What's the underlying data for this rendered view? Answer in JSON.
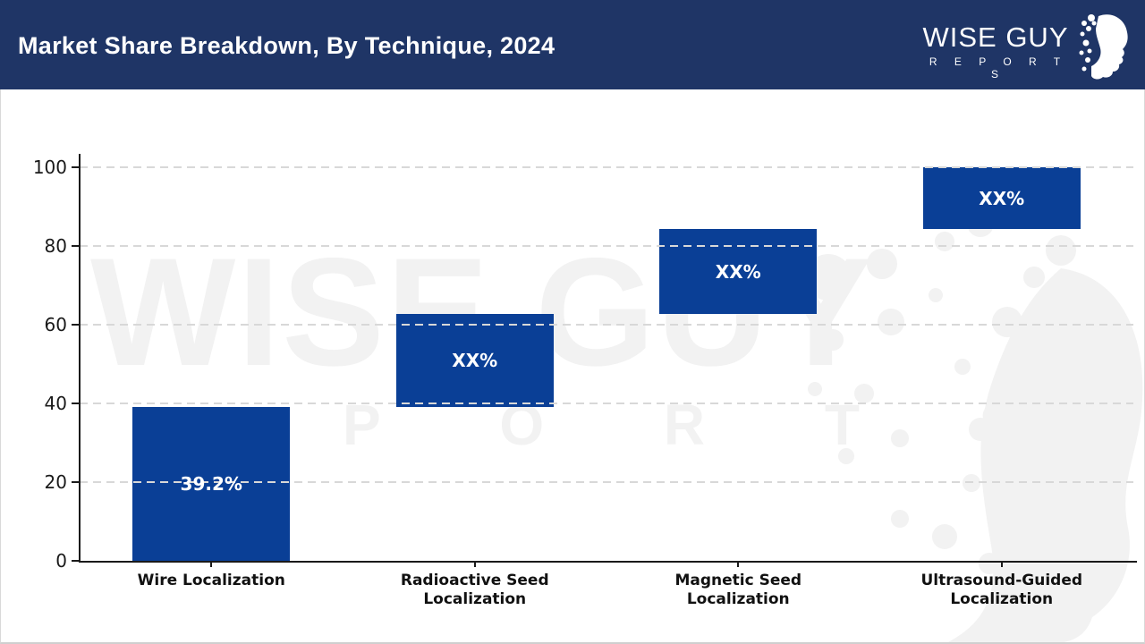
{
  "header": {
    "title": "Market Share Breakdown, By Technique, 2024",
    "logo": {
      "name": "WISE GUY",
      "sub": "R E P O R T S"
    }
  },
  "watermark": {
    "line1": "WISE GUY",
    "line2": "P O R T S"
  },
  "colors": {
    "header_bg": "#1f3566",
    "bar": "#0a3f96",
    "axis": "#1a1a1a",
    "grid": "#d9d9d9",
    "watermark": "#f2f2f2",
    "page_bg": "#ffffff"
  },
  "chart_data": {
    "type": "bar",
    "variant": "floating-waterfall",
    "title": "Market Share Breakdown, By Technique, 2024",
    "xlabel": "",
    "ylabel": "",
    "ylim": [
      0,
      100
    ],
    "yticks": [
      0,
      20,
      40,
      60,
      80,
      100
    ],
    "grid": {
      "axis": "y",
      "style": "dashed",
      "color": "#d9d9d9"
    },
    "legend": null,
    "bar_color": "#0a3f96",
    "bar_label_color": "#ffffff",
    "categories": [
      "Wire Localization",
      "Radioactive Seed\nLocalization",
      "Magnetic Seed\nLocalization",
      "Ultrasound-Guided\nLocalization"
    ],
    "segments": [
      {
        "category": "Wire Localization",
        "start": 0,
        "end": 39.2,
        "label": "39.2%"
      },
      {
        "category": "Radioactive Seed Localization",
        "start": 39.2,
        "end": 62.7,
        "label": "XX%"
      },
      {
        "category": "Magnetic Seed Localization",
        "start": 62.7,
        "end": 84.3,
        "label": "XX%"
      },
      {
        "category": "Ultrasound-Guided Localization",
        "start": 84.3,
        "end": 100,
        "label": "XX%"
      }
    ]
  }
}
